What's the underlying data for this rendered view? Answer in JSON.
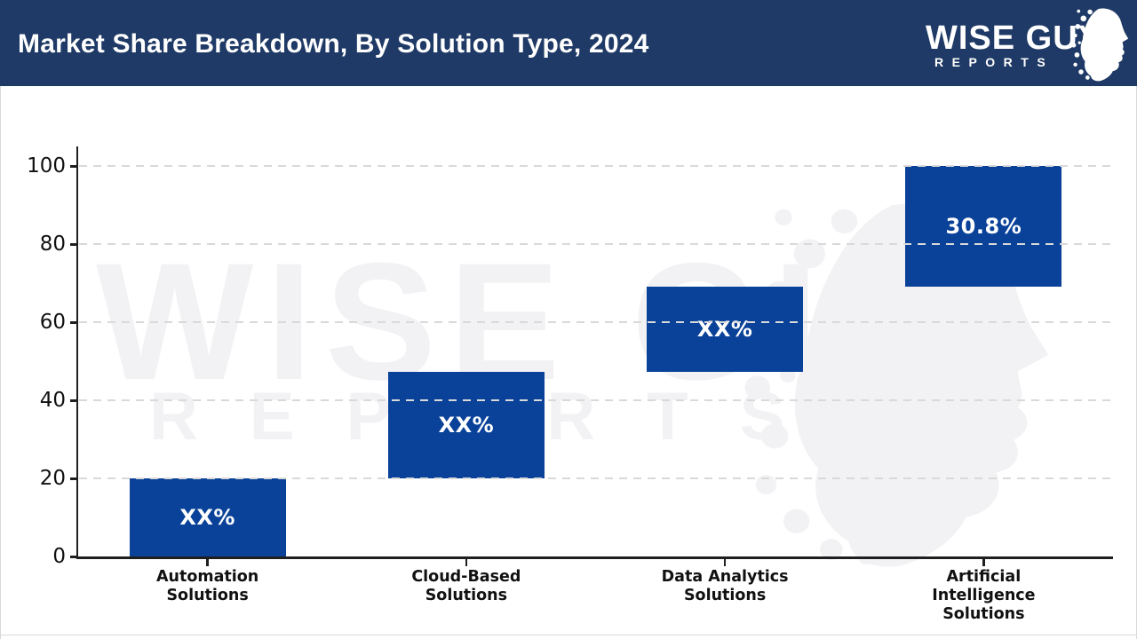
{
  "header": {
    "title": "Market Share Breakdown, By Solution Type, 2024",
    "logo": {
      "line1": "WISE GUY",
      "line2": "REPORTS"
    }
  },
  "watermark": {
    "line1": "WISE GUY",
    "line2": "REPORTS"
  },
  "colors": {
    "header_bg": "#1f3a66",
    "bar": "#0a4299",
    "grid": "#d9d9d9",
    "axis": "#1f1f1f",
    "watermark": "#f2f2f4",
    "text": "#111111",
    "bar_label": "#ffffff"
  },
  "chart_data": {
    "type": "bar",
    "subtype": "floating-waterfall",
    "title": "Market Share Breakdown, By Solution Type, 2024",
    "xlabel": "",
    "ylabel": "",
    "ylim": [
      0,
      100
    ],
    "yticks": [
      0,
      20,
      40,
      60,
      80,
      100
    ],
    "grid": "horizontal-dashed",
    "bar_color": "#0a4299",
    "categories": [
      "Automation Solutions",
      "Cloud-Based Solutions",
      "Data Analytics Solutions",
      "Artificial Intelligence Solutions"
    ],
    "segments": [
      {
        "category": "Automation Solutions",
        "lines": [
          "Automation",
          "Solutions"
        ],
        "start": 0,
        "end": 20,
        "value": 20,
        "label": "XX%"
      },
      {
        "category": "Cloud-Based Solutions",
        "lines": [
          "Cloud-Based",
          "Solutions"
        ],
        "start": 20,
        "end": 47.3,
        "value": 27.3,
        "label": "XX%"
      },
      {
        "category": "Data Analytics Solutions",
        "lines": [
          "Data Analytics",
          "Solutions"
        ],
        "start": 47.3,
        "end": 69.2,
        "value": 21.9,
        "label": "XX%"
      },
      {
        "category": "Artificial Intelligence Solutions",
        "lines": [
          "Artificial",
          "Intelligence",
          "Solutions"
        ],
        "start": 69.2,
        "end": 100,
        "value": 30.8,
        "label": "30.8%"
      }
    ]
  }
}
